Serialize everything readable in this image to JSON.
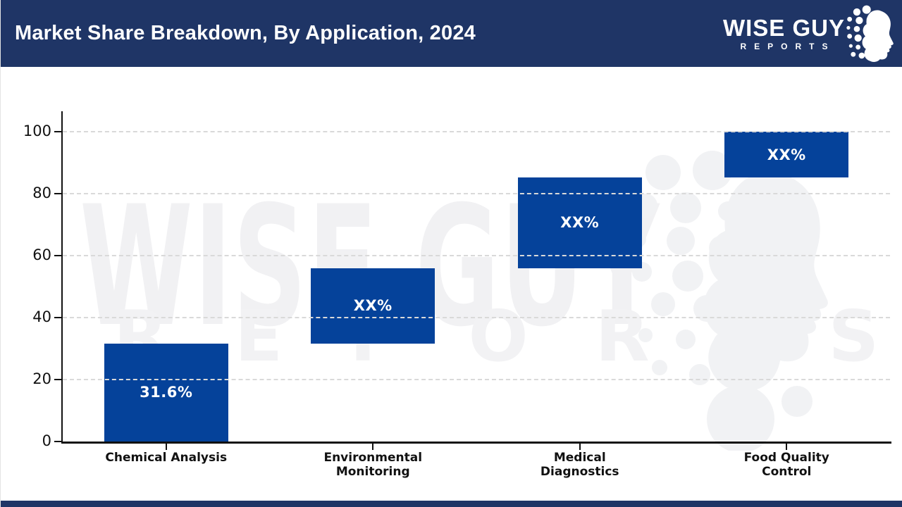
{
  "header": {
    "title": "Market Share Breakdown, By Application, 2024",
    "bg_color": "#1F3566",
    "logo": {
      "line1": "WISE GUY",
      "line2": "REPORTS"
    }
  },
  "watermark": {
    "line1": "WISE GUY",
    "line2": "REPORTS"
  },
  "footer": {
    "bg_color": "#1F3566"
  },
  "chart_data": {
    "type": "bar",
    "subtype": "waterfall",
    "title": "Market Share Breakdown, By Application, 2024",
    "categories": [
      "Chemical Analysis",
      "Environmental Monitoring",
      "Medical Diagnostics",
      "Food Quality Control"
    ],
    "categories_wrapped": [
      [
        "Chemical Analysis"
      ],
      [
        "Environmental",
        "Monitoring"
      ],
      [
        "Medical",
        "Diagnostics"
      ],
      [
        "Food Quality",
        "Control"
      ]
    ],
    "series": [
      {
        "name": "Market Share",
        "segments": [
          {
            "category": "Chemical Analysis",
            "start": 0,
            "end": 31.6,
            "label": "31.6%"
          },
          {
            "category": "Environmental Monitoring",
            "start": 31.6,
            "end": 56.0,
            "label": "XX%"
          },
          {
            "category": "Medical Diagnostics",
            "start": 56.0,
            "end": 85.2,
            "label": "XX%"
          },
          {
            "category": "Food Quality Control",
            "start": 85.2,
            "end": 100.0,
            "label": "XX%"
          }
        ]
      }
    ],
    "ylim": [
      0,
      100
    ],
    "yticks": [
      0,
      20,
      40,
      60,
      80,
      100
    ],
    "xlabel": "",
    "ylabel": "",
    "grid": "horizontal-dashed, drawn above bars",
    "legend": "none",
    "bar_color": "#05429A",
    "bar_label_color": "#FFFFFF",
    "axis_color": "#111111",
    "gridline_color": "#D9D9D9"
  }
}
